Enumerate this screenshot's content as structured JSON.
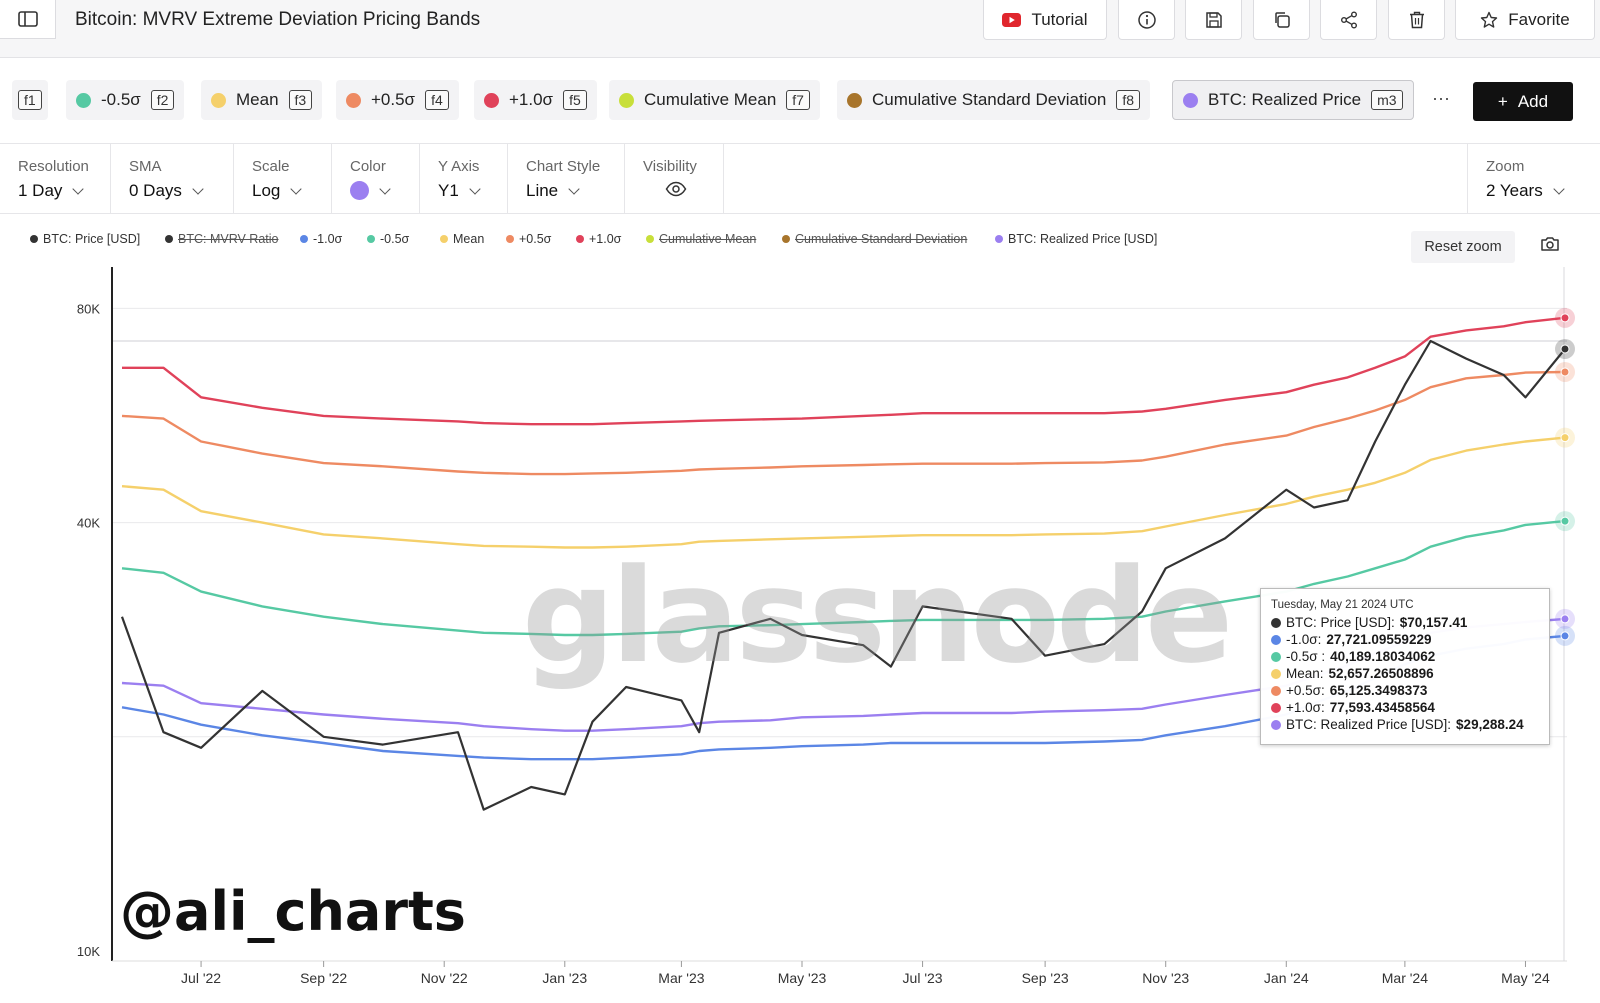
{
  "header": {
    "title": "Bitcoin: MVRV Extreme Deviation Pricing Bands",
    "tutorial_label": "Tutorial",
    "favorite_label": "Favorite"
  },
  "chips": [
    {
      "label": "",
      "key": "f1",
      "color": ""
    },
    {
      "label": "-0.5σ",
      "key": "f2",
      "color": "#56c9a3"
    },
    {
      "label": "Mean",
      "key": "f3",
      "color": "#f5d06b"
    },
    {
      "label": "+0.5σ",
      "key": "f4",
      "color": "#ee8a62"
    },
    {
      "label": "+1.0σ",
      "key": "f5",
      "color": "#e0425a"
    },
    {
      "label": "Cumulative Mean",
      "key": "f7",
      "color": "#c8df3a"
    },
    {
      "label": "Cumulative Standard Deviation",
      "key": "f8",
      "color": "#a8752c"
    },
    {
      "label": "BTC: Realized Price",
      "key": "m3",
      "color": "#9b7ff0"
    }
  ],
  "more_label": "···",
  "add_label": "Add",
  "controls": {
    "resolution": {
      "label": "Resolution",
      "value": "1 Day"
    },
    "sma": {
      "label": "SMA",
      "value": "0 Days"
    },
    "scale": {
      "label": "Scale",
      "value": "Log"
    },
    "color": {
      "label": "Color",
      "value": "#9b7ff0"
    },
    "yaxis": {
      "label": "Y Axis",
      "value": "Y1"
    },
    "chart_style": {
      "label": "Chart Style",
      "value": "Line"
    },
    "visibility": {
      "label": "Visibility"
    },
    "zoom": {
      "label": "Zoom",
      "value": "2 Years"
    }
  },
  "reset_zoom_label": "Reset zoom",
  "watermark": "glassnode",
  "handle": "@ali_charts",
  "tooltip": {
    "date": "Tuesday, May 21 2024 UTC",
    "rows": [
      {
        "name": "BTC: Price [USD]:",
        "value": "$70,157.41",
        "color": "#333333"
      },
      {
        "name": "-1.0σ:",
        "value": "27,721.09559229",
        "color": "#5b86e5"
      },
      {
        "name": "-0.5σ :",
        "value": "40,189.18034062",
        "color": "#56c9a3"
      },
      {
        "name": "Mean:",
        "value": "52,657.26508896",
        "color": "#f5d06b"
      },
      {
        "name": "+0.5σ:",
        "value": "65,125.3498373",
        "color": "#ee8a62"
      },
      {
        "name": "+1.0σ:",
        "value": "77,593.43458564",
        "color": "#e0425a"
      },
      {
        "name": "BTC: Realized Price [USD]:",
        "value": "$29,288.24",
        "color": "#9b7ff0"
      }
    ]
  },
  "chart_data": {
    "type": "line",
    "scale": "log",
    "ylim": [
      10000,
      90000
    ],
    "y_ticks": [
      {
        "value": 10000,
        "label": "10K"
      },
      {
        "value": 40000,
        "label": "40K"
      },
      {
        "value": 80000,
        "label": "80K"
      }
    ],
    "x_ticks": [
      "Jul '22",
      "Sep '22",
      "Nov '22",
      "Jan '23",
      "Mar '23",
      "May '23",
      "Jul '23",
      "Sep '23",
      "Nov '23",
      "Jan '24",
      "Mar '24",
      "May '24"
    ],
    "x_range": [
      "2022-05-22",
      "2024-05-21"
    ],
    "legend": [
      {
        "name": "BTC: Price [USD]",
        "color": "#333333",
        "visible": true
      },
      {
        "name": "BTC: MVRV Ratio",
        "color": "#333333",
        "visible": false
      },
      {
        "name": "-1.0σ",
        "color": "#5b86e5",
        "visible": true
      },
      {
        "name": "-0.5σ",
        "color": "#56c9a3",
        "visible": true
      },
      {
        "name": "Mean",
        "color": "#f5d06b",
        "visible": true
      },
      {
        "name": "+0.5σ",
        "color": "#ee8a62",
        "visible": true
      },
      {
        "name": "+1.0σ",
        "color": "#e0425a",
        "visible": true
      },
      {
        "name": "Cumulative Mean",
        "color": "#c8df3a",
        "visible": false
      },
      {
        "name": "Cumulative Standard Deviation",
        "color": "#a8752c",
        "visible": false
      },
      {
        "name": "BTC: Realized Price [USD]",
        "color": "#9b7ff0",
        "visible": true
      }
    ],
    "dates": [
      "2022-05-22",
      "2022-06-12",
      "2022-07-01",
      "2022-08-01",
      "2022-09-01",
      "2022-10-01",
      "2022-11-08",
      "2022-11-21",
      "2022-12-15",
      "2023-01-01",
      "2023-01-15",
      "2023-02-01",
      "2023-03-01",
      "2023-03-10",
      "2023-03-20",
      "2023-04-15",
      "2023-05-01",
      "2023-06-01",
      "2023-06-15",
      "2023-07-01",
      "2023-08-15",
      "2023-09-01",
      "2023-10-01",
      "2023-10-20",
      "2023-11-01",
      "2023-12-01",
      "2024-01-01",
      "2024-01-15",
      "2024-02-01",
      "2024-02-15",
      "2024-03-01",
      "2024-03-14",
      "2024-04-01",
      "2024-04-20",
      "2024-05-01",
      "2024-05-21"
    ],
    "series": [
      {
        "name": "+1.0σ",
        "color": "#e0425a",
        "values": [
          66000,
          66000,
          60000,
          58000,
          56500,
          56000,
          55500,
          55200,
          55000,
          55000,
          55000,
          55200,
          55500,
          55600,
          55700,
          55900,
          56000,
          56500,
          56700,
          57000,
          57000,
          57000,
          57000,
          57300,
          57800,
          59500,
          61000,
          62500,
          64000,
          66000,
          68500,
          73000,
          74500,
          75500,
          76500,
          77593
        ]
      },
      {
        "name": "+0.5σ",
        "color": "#ee8a62",
        "values": [
          56500,
          56000,
          52000,
          50000,
          48500,
          48000,
          47200,
          47000,
          46800,
          46800,
          46900,
          47000,
          47300,
          47500,
          47600,
          47800,
          48000,
          48200,
          48300,
          48400,
          48400,
          48500,
          48600,
          48900,
          49500,
          51500,
          53000,
          54500,
          56000,
          57500,
          59500,
          62000,
          63800,
          64500,
          65000,
          65125
        ]
      },
      {
        "name": "Mean",
        "color": "#f5d06b",
        "values": [
          45000,
          44500,
          41500,
          40000,
          38500,
          38000,
          37300,
          37100,
          37000,
          36900,
          36900,
          37000,
          37300,
          37600,
          37700,
          37900,
          38000,
          38200,
          38300,
          38400,
          38400,
          38500,
          38600,
          38900,
          39500,
          41000,
          42500,
          43500,
          44500,
          45500,
          47000,
          49000,
          50500,
          51500,
          52000,
          52657
        ]
      },
      {
        "name": "-0.5σ",
        "color": "#56c9a3",
        "values": [
          34500,
          34000,
          32000,
          30500,
          29500,
          28800,
          28200,
          28000,
          27900,
          27800,
          27800,
          27900,
          28100,
          28400,
          28600,
          28700,
          28800,
          29000,
          29100,
          29200,
          29200,
          29200,
          29300,
          29500,
          30000,
          31000,
          32000,
          32800,
          33600,
          34500,
          35500,
          37000,
          38200,
          39000,
          39700,
          40189
        ]
      },
      {
        "name": "-1.0σ",
        "color": "#5b86e5",
        "values": [
          22000,
          21500,
          20800,
          20100,
          19600,
          19100,
          18800,
          18700,
          18600,
          18600,
          18600,
          18700,
          18900,
          19100,
          19200,
          19300,
          19400,
          19500,
          19600,
          19600,
          19600,
          19600,
          19700,
          19800,
          20100,
          20700,
          21500,
          22300,
          23200,
          24200,
          25300,
          26000,
          26600,
          27000,
          27400,
          27721
        ]
      },
      {
        "name": "BTC: Realized Price [USD]",
        "color": "#9b7ff0",
        "values": [
          23800,
          23600,
          22300,
          21900,
          21500,
          21200,
          20900,
          20700,
          20500,
          20400,
          20400,
          20500,
          20700,
          20900,
          21000,
          21100,
          21300,
          21400,
          21500,
          21600,
          21600,
          21700,
          21800,
          21900,
          22200,
          22900,
          23600,
          24300,
          25200,
          26200,
          27200,
          28000,
          28500,
          28800,
          29000,
          29288
        ]
      },
      {
        "name": "BTC: Price [USD]",
        "color": "#333333",
        "values": [
          29500,
          20300,
          19300,
          23200,
          20000,
          19500,
          20300,
          15800,
          17000,
          16600,
          21000,
          23500,
          22500,
          20300,
          28000,
          29300,
          27800,
          26900,
          25100,
          30500,
          29300,
          26000,
          27000,
          30000,
          34500,
          38000,
          44500,
          42000,
          43000,
          52000,
          62500,
          72000,
          68000,
          64500,
          60000,
          70157
        ]
      }
    ]
  }
}
